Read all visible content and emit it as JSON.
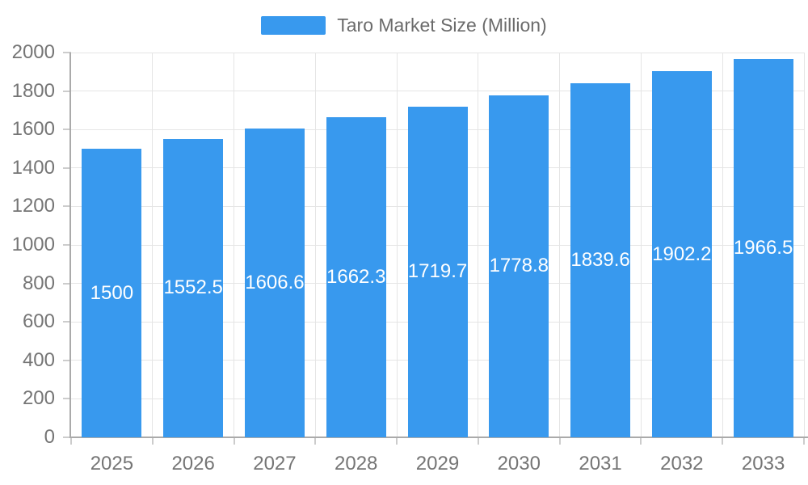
{
  "chart_data": {
    "type": "bar",
    "title": "Taro Market Size (Million)",
    "legend": {
      "label": "Taro Market Size (Million)",
      "position": "top"
    },
    "categories": [
      "2025",
      "2026",
      "2027",
      "2028",
      "2029",
      "2030",
      "2031",
      "2032",
      "2033"
    ],
    "series": [
      {
        "name": "Taro Market Size (Million)",
        "values": [
          1500,
          1552.5,
          1606.6,
          1662.3,
          1719.7,
          1778.8,
          1839.6,
          1902.2,
          1966.5
        ],
        "bar_labels": [
          "1500",
          "1552.5",
          "1606.6",
          "1662.3",
          "1719.7",
          "1778.8",
          "1839.6",
          "1902.2",
          "1966.5"
        ],
        "label_position": "inside-middle"
      }
    ],
    "xlabel": "",
    "ylabel": "",
    "ylim": [
      0,
      2000
    ],
    "y_ticks": [
      0,
      200,
      400,
      600,
      800,
      1000,
      1200,
      1400,
      1600,
      1800,
      2000
    ],
    "grid": true
  },
  "colors": {
    "bar": "#3899EE",
    "grid_line": "#E5E5E5",
    "axis_line": "#AAAAAA",
    "tick": "#CCCCCC",
    "axis_text": "#757575",
    "legend_text": "#6B6B6B",
    "bar_label_text": "#FFFFFF",
    "background": "#FFFFFF"
  }
}
